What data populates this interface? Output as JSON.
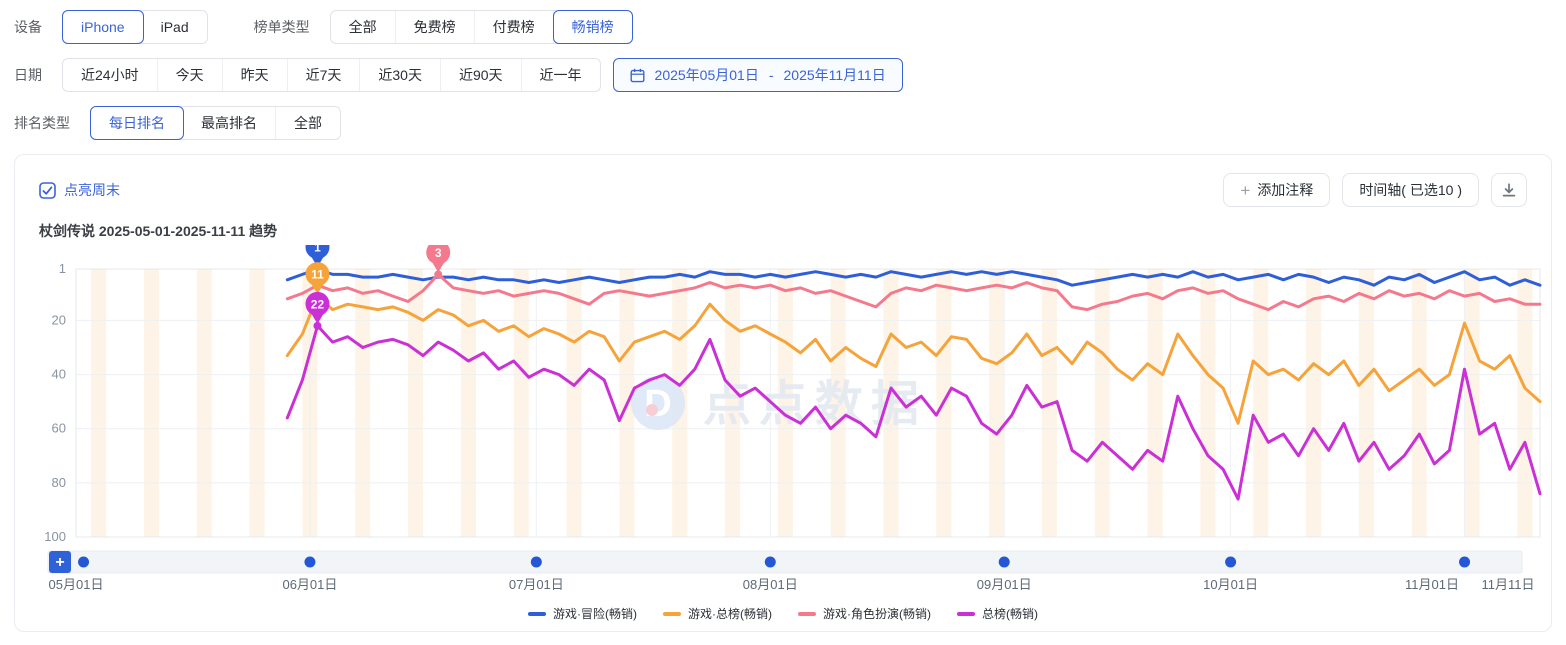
{
  "filters": {
    "device": {
      "label": "设备",
      "options": [
        "iPhone",
        "iPad"
      ],
      "selected": "iPhone"
    },
    "chart_type": {
      "label": "榜单类型",
      "options": [
        "全部",
        "免费榜",
        "付费榜",
        "畅销榜"
      ],
      "selected": "畅销榜"
    },
    "date": {
      "label": "日期",
      "options": [
        "近24小时",
        "今天",
        "昨天",
        "近7天",
        "近30天",
        "近90天",
        "近一年"
      ],
      "range_start": "2025年05月01日",
      "range_sep": "-",
      "range_end": "2025年11月11日"
    },
    "rank_type": {
      "label": "排名类型",
      "options": [
        "每日排名",
        "最高排名",
        "全部"
      ],
      "selected": "每日排名"
    }
  },
  "panel": {
    "weekend_toggle": "点亮周末",
    "title": "杖剑传说 2025-05-01-2025-11-11 趋势",
    "add_note_label": "添加注释",
    "add_note_plus": "+",
    "timeline_label": "时间轴( 已选10 )",
    "watermark": "点点数据"
  },
  "chart_data": {
    "type": "line",
    "title": "杖剑传说 2025-05-01-2025-11-11 趋势",
    "y_axis": {
      "inverted": true,
      "range": [
        1,
        100
      ],
      "ticks": [
        1,
        20,
        40,
        60,
        80,
        100
      ]
    },
    "x_axis": {
      "labels": [
        {
          "text": "05月01日",
          "day": 0
        },
        {
          "text": "06月01日",
          "day": 31
        },
        {
          "text": "07月01日",
          "day": 61
        },
        {
          "text": "08月01日",
          "day": 92
        },
        {
          "text": "09月01日",
          "day": 123
        },
        {
          "text": "10月01日",
          "day": 153
        },
        {
          "text": "11月01日",
          "day": 184
        },
        {
          "text": "11月11日",
          "day": 194
        }
      ]
    },
    "weekend_highlight": {
      "enabled": true,
      "first_saturday_day": 2,
      "span_days": 2,
      "color": "#fdf4e7"
    },
    "timeline_plus": "+",
    "timeline_dots_days": [
      1,
      31,
      61,
      92,
      123,
      153,
      184
    ],
    "series": [
      {
        "name": "游戏·冒险(畅销)",
        "color": "#2e5fd9",
        "start_day": 28,
        "step": 2,
        "values": [
          5,
          3,
          1,
          3,
          3,
          4,
          4,
          3,
          4,
          5,
          4,
          4,
          5,
          4,
          5,
          5,
          6,
          5,
          6,
          5,
          4,
          5,
          6,
          5,
          4,
          4,
          3,
          4,
          2,
          3,
          3,
          4,
          3,
          4,
          3,
          2,
          3,
          4,
          3,
          4,
          2,
          3,
          4,
          3,
          2,
          3,
          2,
          3,
          2,
          3,
          4,
          5,
          7,
          6,
          5,
          4,
          3,
          4,
          3,
          4,
          2,
          4,
          3,
          5,
          4,
          3,
          5,
          3,
          4,
          6,
          4,
          5,
          7,
          4,
          5,
          3,
          6,
          4,
          2,
          5,
          4,
          7,
          5,
          7
        ]
      },
      {
        "name": "游戏·总榜(畅销)",
        "color": "#f6a33a",
        "start_day": 28,
        "step": 2,
        "values": [
          33,
          25,
          11,
          16,
          14,
          15,
          16,
          15,
          17,
          20,
          16,
          18,
          22,
          20,
          24,
          22,
          26,
          23,
          25,
          28,
          24,
          26,
          35,
          28,
          26,
          24,
          27,
          22,
          14,
          20,
          24,
          22,
          25,
          28,
          32,
          27,
          35,
          30,
          34,
          37,
          25,
          30,
          28,
          33,
          26,
          27,
          34,
          36,
          32,
          25,
          33,
          30,
          36,
          28,
          32,
          38,
          42,
          36,
          40,
          25,
          33,
          40,
          45,
          58,
          35,
          40,
          38,
          42,
          36,
          40,
          35,
          44,
          38,
          46,
          42,
          38,
          44,
          40,
          21,
          35,
          38,
          33,
          45,
          50
        ]
      },
      {
        "name": "游戏·角色扮演(畅销)",
        "color": "#f5798c",
        "start_day": 28,
        "step": 2,
        "values": [
          12,
          10,
          7,
          9,
          8,
          10,
          9,
          11,
          13,
          9,
          3,
          8,
          9,
          10,
          9,
          11,
          10,
          9,
          10,
          12,
          14,
          10,
          9,
          10,
          11,
          10,
          9,
          8,
          6,
          8,
          7,
          8,
          7,
          9,
          8,
          10,
          9,
          11,
          13,
          15,
          10,
          8,
          9,
          7,
          8,
          9,
          8,
          7,
          8,
          6,
          8,
          9,
          15,
          16,
          14,
          13,
          11,
          10,
          12,
          9,
          8,
          10,
          9,
          12,
          14,
          16,
          13,
          15,
          12,
          11,
          13,
          10,
          12,
          9,
          11,
          10,
          12,
          9,
          11,
          10,
          13,
          12,
          14,
          14
        ]
      },
      {
        "name": "总榜(畅销)",
        "color": "#cb30d6",
        "start_day": 28,
        "step": 2,
        "values": [
          56,
          42,
          22,
          28,
          26,
          30,
          28,
          27,
          29,
          33,
          28,
          31,
          35,
          32,
          38,
          35,
          41,
          38,
          40,
          44,
          38,
          42,
          57,
          45,
          42,
          40,
          44,
          38,
          27,
          42,
          48,
          45,
          50,
          55,
          58,
          52,
          60,
          55,
          58,
          63,
          45,
          52,
          48,
          55,
          45,
          48,
          58,
          62,
          55,
          44,
          52,
          50,
          68,
          72,
          65,
          70,
          75,
          68,
          72,
          48,
          60,
          70,
          75,
          86,
          55,
          65,
          62,
          70,
          60,
          68,
          58,
          72,
          65,
          75,
          70,
          62,
          73,
          68,
          38,
          62,
          58,
          75,
          65,
          84
        ]
      }
    ],
    "markers": [
      {
        "series": 0,
        "day": 32,
        "value": 1,
        "label": "1"
      },
      {
        "series": 1,
        "day": 32,
        "value": 11,
        "label": "11"
      },
      {
        "series": 3,
        "day": 32,
        "value": 22,
        "label": "22"
      },
      {
        "series": 2,
        "day": 48,
        "value": 3,
        "label": "3"
      }
    ]
  }
}
